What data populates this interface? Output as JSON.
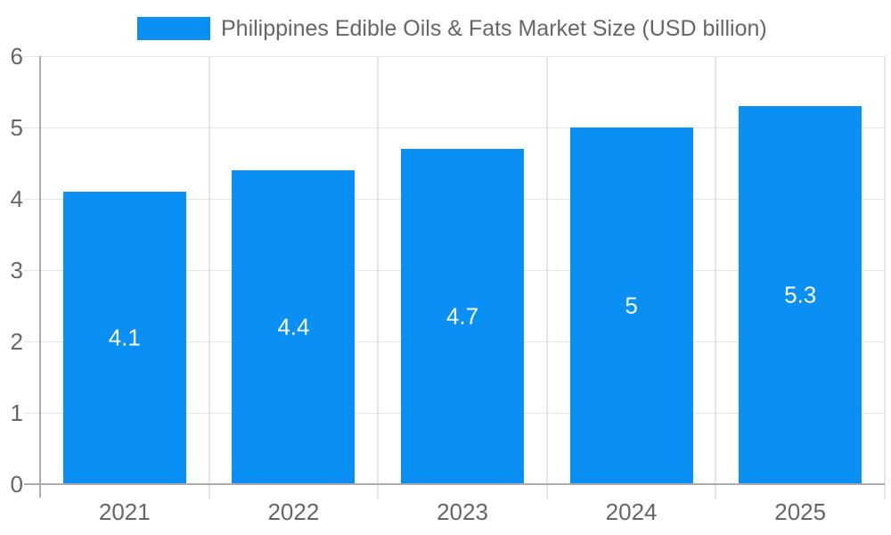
{
  "chart_data": {
    "type": "bar",
    "title": "Philippines Edible Oils & Fats Market Size (USD billion)",
    "categories": [
      "2021",
      "2022",
      "2023",
      "2024",
      "2025"
    ],
    "series": [
      {
        "name": "Philippines Edible Oils & Fats Market Size (USD billion)",
        "values": [
          4.1,
          4.4,
          4.7,
          5,
          5.3
        ],
        "value_labels": [
          "4.1",
          "4.4",
          "4.7",
          "5",
          "5.3"
        ],
        "color": "#0a8ff5"
      }
    ],
    "xlabel": "",
    "ylabel": "",
    "ylim": [
      0,
      6
    ],
    "yticks": [
      "0",
      "1",
      "2",
      "3",
      "4",
      "5",
      "6"
    ],
    "grid": true,
    "legend_position": "top",
    "colors": {
      "bar": "#0a8ff5",
      "grid": "#e5e5e5",
      "axis": "#ababab",
      "text": "#666666",
      "value_label": "#ffffff",
      "background": "#ffffff"
    }
  }
}
